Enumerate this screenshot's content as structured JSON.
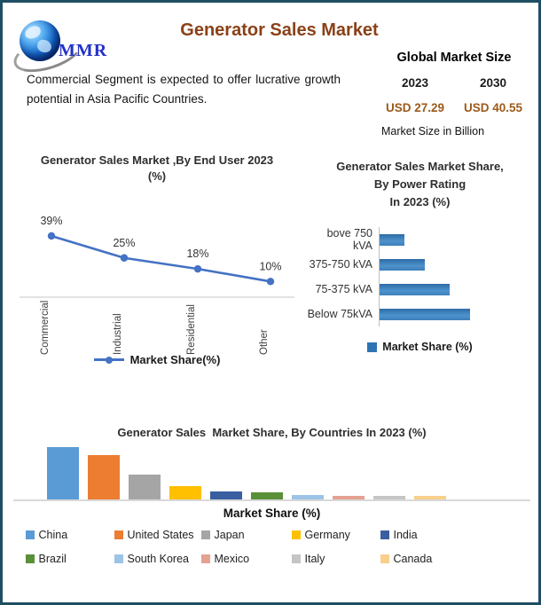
{
  "frame": {
    "border_color": "#1F4E63",
    "background": "#FFFFFF",
    "title_color": "#8A4117"
  },
  "header": {
    "brand": "MMR",
    "logo_icon": "globe-icon",
    "title": "Generator Sales Market",
    "intro": "Commercial Segment is expected to offer lucrative growth potential in Asia Pacific Countries."
  },
  "market_size": {
    "heading": "Global Market Size",
    "year_left": "2023",
    "year_right": "2030",
    "value_left": "USD 27.29",
    "value_right": "USD 40.55",
    "note": "Market Size in Billion",
    "value_color": "#9C5A1A"
  },
  "chart_data": [
    {
      "type": "line",
      "title": "Generator Sales Market ,By End User 2023 (%)",
      "title_lines": [
        "Generator Sales Market ,By End User 2023",
        "(%)"
      ],
      "categories": [
        "Commercial",
        "Industrial",
        "Residential",
        "Other"
      ],
      "values": [
        39,
        25,
        18,
        10
      ],
      "point_labels": [
        "39%",
        "25%",
        "18%",
        "10%"
      ],
      "legend": "Market Share(%)",
      "legend_position": "bottom",
      "line_color": "#4472C4",
      "ylim": [
        0,
        45
      ],
      "grid": false
    },
    {
      "type": "bar",
      "orientation": "horizontal",
      "title": "Generator Sales Market Share, By Power Rating In 2023 (%)",
      "title_lines": [
        "Generator Sales Market Share,",
        "By Power Rating",
        "In 2023 (%)"
      ],
      "categories": [
        "bove 750 kVA",
        "375-750 kVA",
        "75-375 kVA",
        "Below 75kVA"
      ],
      "values": [
        11,
        20,
        31,
        40
      ],
      "xlim": [
        0,
        40
      ],
      "legend": "Market Share (%)",
      "legend_position": "bottom",
      "bar_color": "#2E74B5",
      "grid": false
    },
    {
      "type": "bar",
      "orientation": "vertical",
      "title": "Generator Sales  Market Share, By Countries In 2023 (%)",
      "xlabel": "Market Share (%)",
      "categories": [
        "China",
        "United States",
        "Japan",
        "Germany",
        "India",
        "Brazil",
        "South Korea",
        "Mexico",
        "Italy",
        "Canada"
      ],
      "values": [
        25,
        21,
        12,
        6.5,
        4,
        3.5,
        2,
        1.5,
        1.5,
        1.5
      ],
      "ylim": [
        0,
        26
      ],
      "colors": [
        "#5B9BD5",
        "#ED7D31",
        "#A5A5A5",
        "#FFC000",
        "#3A5FA1",
        "#5A9038",
        "#9DC3E6",
        "#E5A191",
        "#C5C5C5",
        "#F9CF8B"
      ],
      "legend_position": "bottom",
      "grid": false
    }
  ]
}
